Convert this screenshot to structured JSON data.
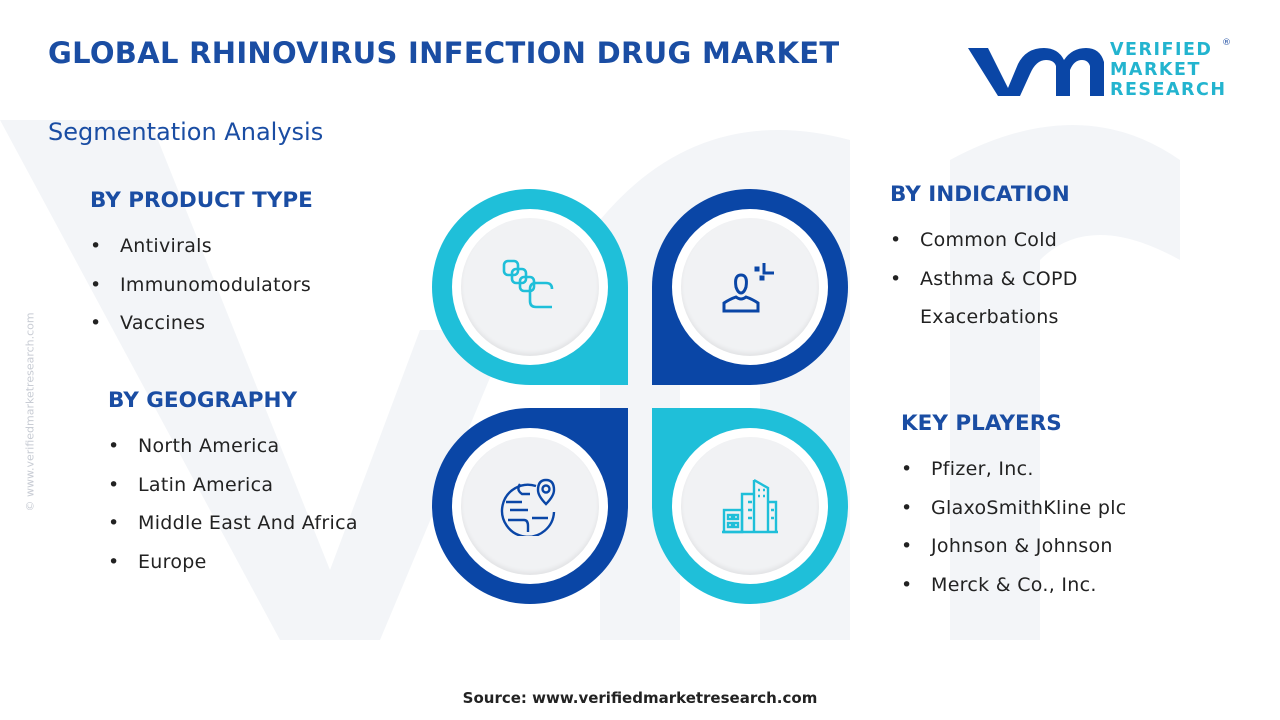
{
  "header": {
    "title": "GLOBAL RHINOVIRUS INFECTION DRUG MARKET",
    "subtitle": "Segmentation Analysis"
  },
  "logo": {
    "line1": "VERIFIED",
    "line2": "MARKET",
    "line3": "RESEARCH",
    "registered": "®"
  },
  "segments": {
    "product_type": {
      "heading": "BY PRODUCT TYPE",
      "items": [
        "Antivirals",
        "Immunomodulators",
        "Vaccines"
      ]
    },
    "indication": {
      "heading": "BY INDICATION",
      "items": [
        "Common Cold",
        "Asthma & COPD",
        "Exacerbations"
      ]
    },
    "geography": {
      "heading": "BY GEOGRAPHY",
      "items": [
        "North America",
        "Latin America",
        "Middle East And Africa",
        "Europe"
      ]
    },
    "key_players": {
      "heading": "KEY PLAYERS",
      "items": [
        "Pfizer, Inc.",
        "GlaxoSmithKline plc",
        "Johnson & Johnson",
        "Merck & Co., Inc."
      ]
    }
  },
  "icons": [
    "capsules-icon",
    "person-icon",
    "globe-location-icon",
    "buildings-icon"
  ],
  "colors": {
    "cyan": "#1fbfd9",
    "blue": "#0a46a6",
    "title": "#1a4da3"
  },
  "watermark": "© www.verifiedmarketresearch.com",
  "source": "Source: www.verifiedmarketresearch.com"
}
